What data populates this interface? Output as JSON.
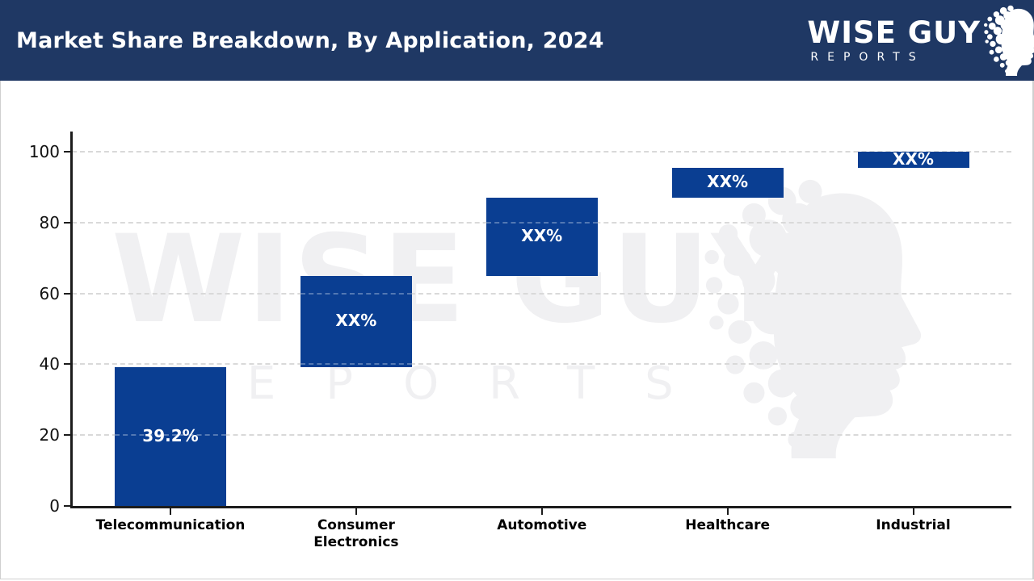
{
  "header": {
    "title": "Market Share Breakdown, By Application, 2024",
    "logo": {
      "name_line": "WISE GUY",
      "reports_line": "REPORTS"
    }
  },
  "watermark": {
    "name_line": "WISE GUY",
    "reports_line": "REPORTS"
  },
  "colors": {
    "header_bg": "#1f3864",
    "bar": "#0a3e92",
    "grid": "#d9d9d9",
    "axis": "#1c1c1c",
    "bar_label": "#ffffff",
    "watermark": "#f0f0f2"
  },
  "chart_data": {
    "type": "bar",
    "variant": "waterfall",
    "title": "Market Share Breakdown, By Application, 2024",
    "categories": [
      "Telecommunication",
      "Consumer Electronics",
      "Automotive",
      "Healthcare",
      "Industrial"
    ],
    "tick_labels": [
      "Telecommunication",
      "Consumer\nElectronics",
      "Automotive",
      "Healthcare",
      "Industrial"
    ],
    "bars": [
      {
        "category": "Telecommunication",
        "start": 0,
        "end": 39.2,
        "label": "39.2%"
      },
      {
        "category": "Consumer Electronics",
        "start": 39.2,
        "end": 65,
        "label": "XX%"
      },
      {
        "category": "Automotive",
        "start": 65,
        "end": 87,
        "label": "XX%"
      },
      {
        "category": "Healthcare",
        "start": 87,
        "end": 95.5,
        "label": "XX%"
      },
      {
        "category": "Industrial",
        "start": 95.5,
        "end": 100,
        "label": "XX%"
      }
    ],
    "xlabel": "",
    "ylabel": "",
    "ylim": [
      0,
      100
    ],
    "yticks": [
      0,
      20,
      40,
      60,
      80,
      100
    ],
    "grid": "horizontal-dashed",
    "legend": "none"
  }
}
